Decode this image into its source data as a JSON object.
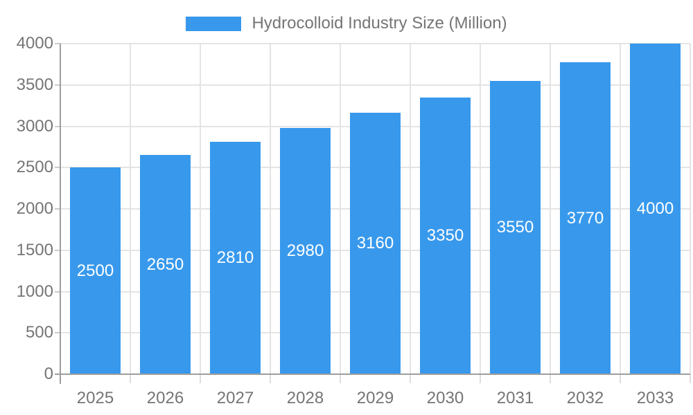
{
  "chart_data": {
    "type": "bar",
    "title": "",
    "legend": "Hydrocolloid Industry Size (Million)",
    "legend_position": "top",
    "categories": [
      "2025",
      "2026",
      "2027",
      "2028",
      "2029",
      "2030",
      "2031",
      "2032",
      "2033"
    ],
    "values": [
      2500,
      2650,
      2810,
      2980,
      3160,
      3350,
      3550,
      3770,
      4000
    ],
    "xlabel": "",
    "ylabel": "",
    "ylim": [
      0,
      4000
    ],
    "ytick_step": 500,
    "yticks": [
      0,
      500,
      1000,
      1500,
      2000,
      2500,
      3000,
      3500,
      4000
    ],
    "grid": true,
    "bar_value_labels_inside": true
  },
  "colors": {
    "bar": "#3899ec",
    "axis_label": "#757575",
    "bar_label": "#ffffff",
    "gridline": "#e4e4e4",
    "axis_line": "#9e9e9e",
    "background": "#ffffff"
  }
}
